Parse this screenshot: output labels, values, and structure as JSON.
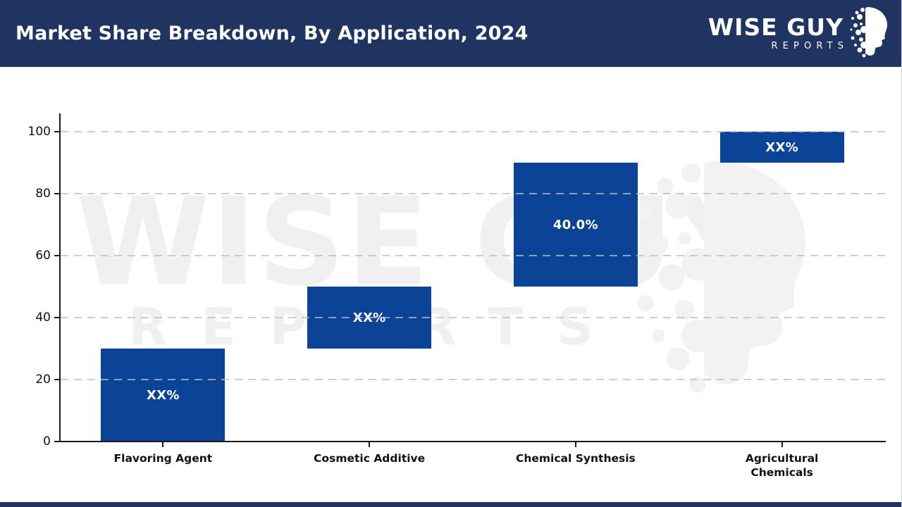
{
  "header": {
    "title": "Market Share Breakdown, By Application, 2024",
    "background": "#1f3461",
    "logo": {
      "line1": "WISE GUY",
      "line2": "REPORTS"
    }
  },
  "chart_data": {
    "type": "bar",
    "variant": "floating-segment-waterfall",
    "title": "Market Share Breakdown, By Application, 2024",
    "categories": [
      "Flavoring Agent",
      "Cosmetic Additive",
      "Chemical Synthesis",
      "Agricultural Chemicals"
    ],
    "series": [
      {
        "name": "Market Share",
        "segments": [
          {
            "category": "Flavoring Agent",
            "start": 0,
            "end": 30,
            "label": "XX%"
          },
          {
            "category": "Cosmetic Additive",
            "start": 30,
            "end": 50,
            "label": "XX%"
          },
          {
            "category": "Chemical Synthesis",
            "start": 50,
            "end": 90,
            "label": "40.0%"
          },
          {
            "category": "Agricultural Chemicals",
            "start": 90,
            "end": 100,
            "label": "XX%"
          }
        ]
      }
    ],
    "ylim": [
      0,
      100
    ],
    "yticks": [
      0,
      20,
      40,
      60,
      80,
      100
    ],
    "xlabel": "",
    "ylabel": "",
    "grid": {
      "horizontal": true,
      "style": "dashed",
      "color": "#cccccc"
    },
    "legend": "none",
    "bar_color": "#0b4397",
    "bar_label_color": "#ffffff"
  },
  "watermark": {
    "line1": "WISE GUY",
    "line2": "REPORTS"
  }
}
